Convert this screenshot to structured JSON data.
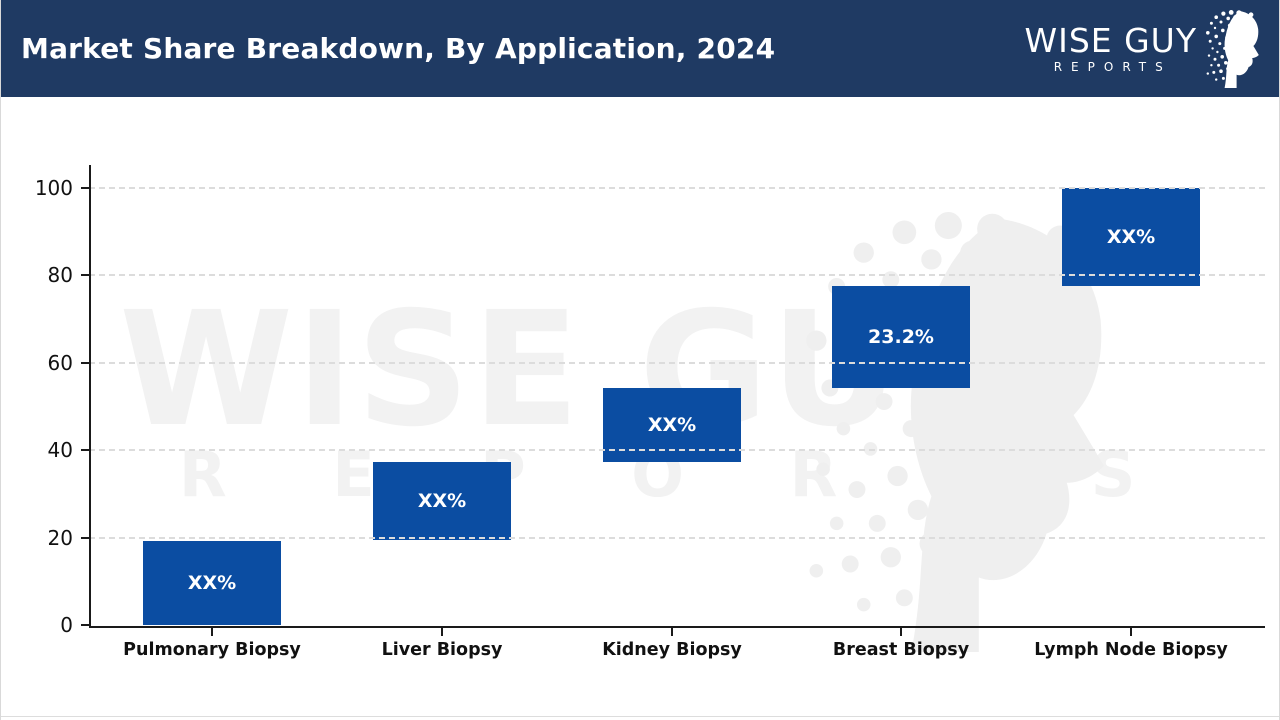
{
  "header": {
    "title": "Market Share Breakdown, By Application, 2024",
    "logo": {
      "line1": "WISE GUY",
      "line2": "REPORTS"
    }
  },
  "watermark": {
    "line1": "WISE GUY",
    "line2": "REPORTS"
  },
  "colors": {
    "header_bg": "#1f3a63",
    "bar_fill": "#0b4da2",
    "bar_label_text": "#ffffff",
    "gridline": "#dcdcdc",
    "axis": "#1a1a1a",
    "watermark": "#f2f2f2",
    "title_text": "#ffffff"
  },
  "chart_data": {
    "type": "bar",
    "subtype": "waterfall",
    "title": "Market Share Breakdown, By Application, 2024",
    "xlabel": "",
    "ylabel": "",
    "ylim": [
      0,
      100
    ],
    "yticks": [
      0,
      20,
      40,
      60,
      80,
      100
    ],
    "grid": "horizontal-dashed",
    "legend": "none",
    "categories": [
      "Pulmonary Biopsy",
      "Liver Biopsy",
      "Kidney Biopsy",
      "Breast Biopsy",
      "Lymph Node Biopsy"
    ],
    "bars": [
      {
        "category": "Pulmonary Biopsy",
        "start": 0,
        "end": 19.3,
        "value": 19.3,
        "label": "XX%"
      },
      {
        "category": "Liver Biopsy",
        "start": 19.4,
        "end": 37.3,
        "value": 17.9,
        "label": "XX%"
      },
      {
        "category": "Kidney Biopsy",
        "start": 37.3,
        "end": 54.2,
        "value": 16.9,
        "label": "XX%"
      },
      {
        "category": "Breast Biopsy",
        "start": 54.2,
        "end": 77.4,
        "value": 23.2,
        "label": "23.2%"
      },
      {
        "category": "Lymph Node Biopsy",
        "start": 77.4,
        "end": 100,
        "value": 22.6,
        "label": "XX%"
      }
    ]
  }
}
